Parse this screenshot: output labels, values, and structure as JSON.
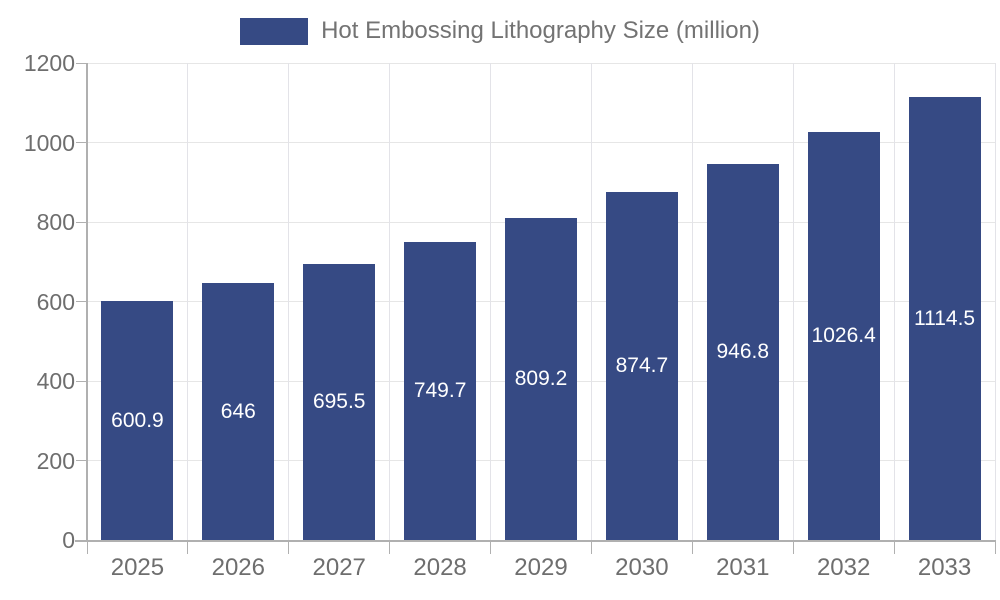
{
  "chart_data": {
    "type": "bar",
    "title": "",
    "legend": "Hot Embossing Lithography Size (million)",
    "legend_position": "top-center",
    "categories": [
      "2025",
      "2026",
      "2027",
      "2028",
      "2029",
      "2030",
      "2031",
      "2032",
      "2033"
    ],
    "values": [
      600.9,
      646,
      695.5,
      749.7,
      809.2,
      874.7,
      946.8,
      1026.4,
      1114.5
    ],
    "xlabel": "",
    "ylabel": "",
    "ylim": [
      0,
      1200
    ],
    "yticks": [
      0,
      200,
      400,
      600,
      800,
      1000,
      1200
    ],
    "grid": true,
    "colors": {
      "bar": "#364A84",
      "grid_horizontal": "#e6e6e6",
      "grid_vertical": "#e3e3e8",
      "axis": "#b0b0b0",
      "tick_label": "#6e6e6e",
      "legend_text": "#737373",
      "value_label": "#ffffff",
      "background": "#ffffff"
    }
  }
}
